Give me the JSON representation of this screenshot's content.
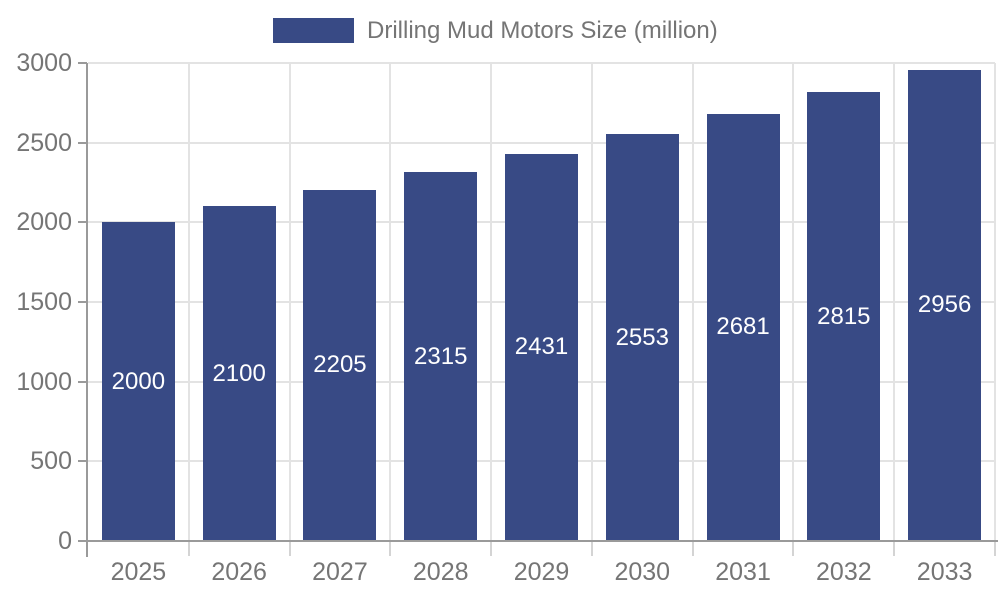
{
  "chart_data": {
    "type": "bar",
    "title": "Drilling Mud Motors Size (million)",
    "legend": {
      "label": "Drilling Mud Motors Size (million)",
      "position": "top-center"
    },
    "categories": [
      "2025",
      "2026",
      "2027",
      "2028",
      "2029",
      "2030",
      "2031",
      "2032",
      "2033"
    ],
    "series": [
      {
        "name": "Drilling Mud Motors Size (million)",
        "values": [
          2000,
          2100,
          2205,
          2315,
          2431,
          2553,
          2681,
          2815,
          2956
        ]
      }
    ],
    "values": [
      2000,
      2100,
      2205,
      2315,
      2431,
      2553,
      2681,
      2815,
      2956
    ],
    "value_labels": [
      "2000",
      "2100",
      "2205",
      "2315",
      "2431",
      "2553",
      "2681",
      "2815",
      "2956"
    ],
    "xlabel": "",
    "ylabel": "",
    "ylim": [
      0,
      3000
    ],
    "yticks": [
      0,
      500,
      1000,
      1500,
      2000,
      2500,
      3000
    ],
    "ytick_labels": [
      "0",
      "500",
      "1000",
      "1500",
      "2000",
      "2500",
      "3000"
    ],
    "grid": true,
    "colors": {
      "bar": "#384A85",
      "value_label": "#FFFFFF",
      "axis_text": "#757575",
      "grid_line": "#E3E3E3",
      "axis_line": "#9A9A9A",
      "tick_line": "#D4D4D4",
      "background": "#FFFFFF"
    }
  }
}
